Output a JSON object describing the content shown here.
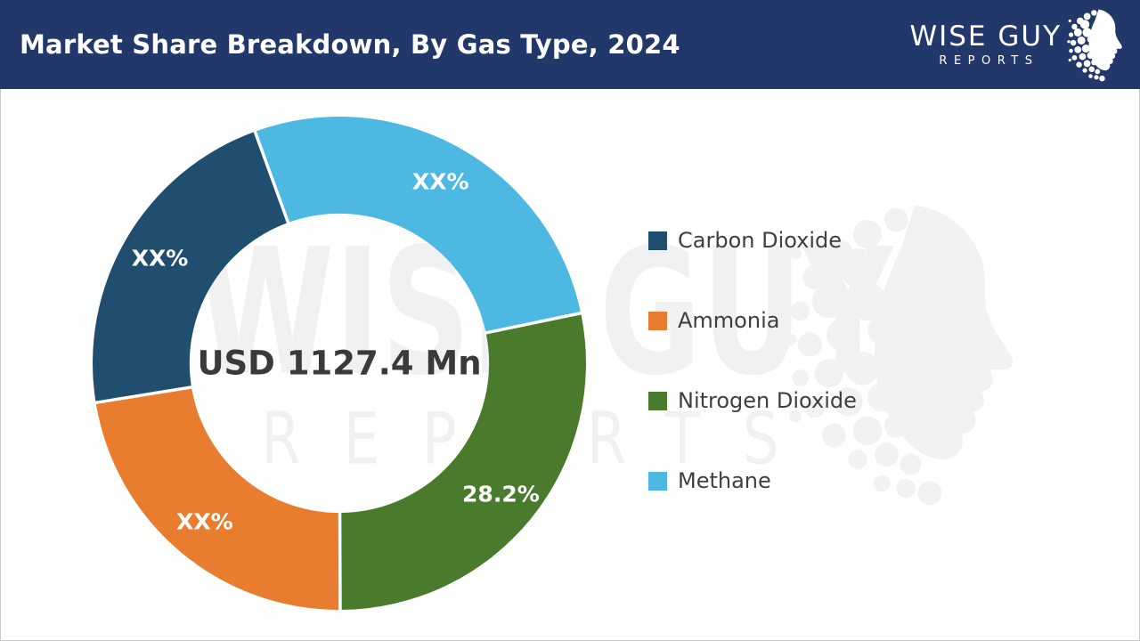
{
  "header": {
    "title": "Market Share Breakdown, By Gas Type, 2024",
    "bg_color": "#22386a",
    "logo": {
      "line1": "WISE GUY",
      "line2": "REPORTS"
    }
  },
  "watermark": {
    "line1": "WISE GUY",
    "line2": "REPORTS"
  },
  "chart_data": {
    "type": "pie",
    "variant": "donut",
    "title": "Market Share Breakdown, By Gas Type, 2024",
    "center_label": "USD 1127.4 Mn",
    "start_angle_deg": 340,
    "inner_radius_ratio": 0.607,
    "legend_position": "right",
    "segments": [
      {
        "name": "Methane",
        "value_pct": 27.3,
        "label": "XX%",
        "color": "#4db9e3"
      },
      {
        "name": "Nitrogen Dioxide",
        "value_pct": 28.2,
        "label": "28.2%",
        "color": "#4a7a2c"
      },
      {
        "name": "Ammonia",
        "value_pct": 22.5,
        "label": "XX%",
        "color": "#e87d2f"
      },
      {
        "name": "Carbon Dioxide",
        "value_pct": 22.0,
        "label": "XX%",
        "color": "#1f4e6e"
      }
    ],
    "legend": [
      {
        "label": "Carbon Dioxide",
        "color": "#1f4e6e"
      },
      {
        "label": "Ammonia",
        "color": "#e87d2f"
      },
      {
        "label": "Nitrogen Dioxide",
        "color": "#4a7a2c"
      },
      {
        "label": "Methane",
        "color": "#4db9e3"
      }
    ]
  }
}
